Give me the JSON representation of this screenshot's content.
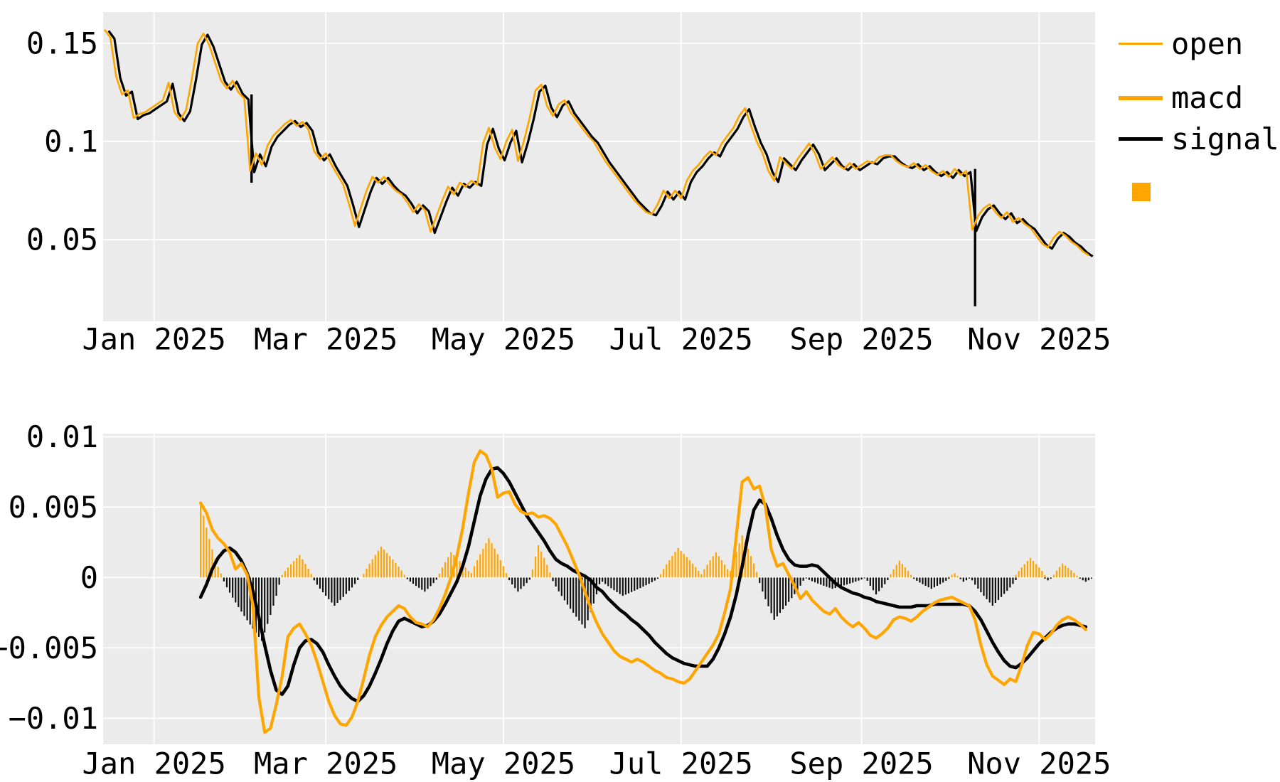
{
  "figure": {
    "background": "#ffffff",
    "panel_background": "#ebebeb",
    "grid_color": "#ffffff",
    "text_color": "#000000",
    "accent_orange": "#FFA500",
    "accent_black": "#000000"
  },
  "legend": {
    "items": [
      {
        "label": "open",
        "swatch": "line-thin",
        "color": "#FFA500"
      },
      {
        "label": "macd",
        "swatch": "line-thick",
        "color": "#FFA500"
      },
      {
        "label": "signal",
        "swatch": "line-thick",
        "color": "#000000"
      },
      {
        "label": "",
        "swatch": "square",
        "color": "#FFA500"
      }
    ]
  },
  "chart_data": {
    "type": "line",
    "title": "",
    "x": {
      "unit": "day index (daily bars, ~mid-Dec 2024 through mid-Nov 2025)",
      "range": [
        0,
        339
      ],
      "ticks": [
        {
          "day": 17,
          "label": "Jan 2025"
        },
        {
          "day": 76,
          "label": "Mar 2025"
        },
        {
          "day": 137,
          "label": "May 2025"
        },
        {
          "day": 198,
          "label": "Jul 2025"
        },
        {
          "day": 260,
          "label": "Sep 2025"
        },
        {
          "day": 321,
          "label": "Nov 2025"
        }
      ]
    },
    "panels": [
      {
        "id": "price",
        "grid": true,
        "ylim": [
          0.008,
          0.166
        ],
        "yticks": [
          {
            "value": 0.15,
            "label": "0.15"
          },
          {
            "value": 0.1,
            "label": "0.1"
          },
          {
            "value": 0.05,
            "label": "0.05"
          }
        ],
        "series": [
          {
            "name": "open",
            "color": "#FFA500",
            "width": 2.6,
            "day_start": 0,
            "day_step": 2,
            "values": [
              0.157,
              0.153,
              0.133,
              0.124,
              0.126,
              0.112,
              0.114,
              0.115,
              0.117,
              0.119,
              0.121,
              0.13,
              0.115,
              0.111,
              0.116,
              0.132,
              0.15,
              0.155,
              0.149,
              0.14,
              0.131,
              0.127,
              0.131,
              0.125,
              0.122,
              0.085,
              0.094,
              0.088,
              0.098,
              0.103,
              0.106,
              0.109,
              0.111,
              0.108,
              0.11,
              0.106,
              0.095,
              0.091,
              0.094,
              0.088,
              0.083,
              0.078,
              0.068,
              0.057,
              0.066,
              0.075,
              0.082,
              0.079,
              0.082,
              0.078,
              0.075,
              0.073,
              0.069,
              0.064,
              0.068,
              0.065,
              0.054,
              0.062,
              0.07,
              0.077,
              0.073,
              0.079,
              0.077,
              0.08,
              0.078,
              0.099,
              0.107,
              0.097,
              0.091,
              0.1,
              0.106,
              0.09,
              0.1,
              0.112,
              0.126,
              0.129,
              0.118,
              0.113,
              0.119,
              0.121,
              0.115,
              0.111,
              0.107,
              0.103,
              0.1,
              0.095,
              0.09,
              0.086,
              0.082,
              0.078,
              0.074,
              0.07,
              0.067,
              0.064,
              0.063,
              0.068,
              0.075,
              0.071,
              0.075,
              0.071,
              0.08,
              0.085,
              0.088,
              0.092,
              0.095,
              0.093,
              0.099,
              0.103,
              0.107,
              0.113,
              0.117,
              0.108,
              0.1,
              0.094,
              0.085,
              0.08,
              0.092,
              0.089,
              0.086,
              0.091,
              0.095,
              0.099,
              0.094,
              0.086,
              0.089,
              0.092,
              0.088,
              0.086,
              0.089,
              0.086,
              0.088,
              0.09,
              0.089,
              0.092,
              0.093,
              0.093,
              0.09,
              0.088,
              0.087,
              0.089,
              0.086,
              0.088,
              0.085,
              0.083,
              0.085,
              0.082,
              0.086,
              0.083,
              0.085,
              0.055,
              0.062,
              0.066,
              0.068,
              0.064,
              0.061,
              0.064,
              0.059,
              0.061,
              0.058,
              0.056,
              0.052,
              0.048,
              0.046,
              0.051,
              0.054,
              0.052,
              0.049,
              0.047,
              0.044,
              0.042
            ]
          }
        ],
        "shadow_series": {
          "name": "open-shadow",
          "color": "#000000",
          "width": 3.2,
          "derived_from": "open",
          "offset_days": 1.4,
          "offset_value": -0.0006
        },
        "crash_spikes": [
          {
            "day": 50.5,
            "from": 0.124,
            "to": 0.079
          },
          {
            "day": 299.0,
            "from": 0.086,
            "to": 0.016
          }
        ]
      },
      {
        "id": "macd",
        "grid": true,
        "ylim": [
          -0.0119,
          0.0102
        ],
        "yticks": [
          {
            "value": 0.01,
            "label": "0.01"
          },
          {
            "value": 0.005,
            "label": "0.005"
          },
          {
            "value": 0.0,
            "label": "0"
          },
          {
            "value": -0.005,
            "label": "−0.005"
          },
          {
            "value": -0.01,
            "label": "−0.01"
          }
        ],
        "series": [
          {
            "name": "macd",
            "color": "#FFA500",
            "width": 4.2,
            "day_start": 33,
            "day_step": 2,
            "values": [
              0.0053,
              0.0046,
              0.0034,
              0.0028,
              0.0024,
              0.0018,
              0.0006,
              0.001,
              0.0002,
              -0.002,
              -0.0085,
              -0.011,
              -0.0107,
              -0.009,
              -0.007,
              -0.0042,
              -0.0036,
              -0.0033,
              -0.004,
              -0.0048,
              -0.006,
              -0.0074,
              -0.0088,
              -0.0098,
              -0.0104,
              -0.0105,
              -0.0099,
              -0.0088,
              -0.0072,
              -0.0055,
              -0.0042,
              -0.0034,
              -0.0028,
              -0.0024,
              -0.002,
              -0.0022,
              -0.0028,
              -0.0032,
              -0.0033,
              -0.0035,
              -0.003,
              -0.0022,
              -0.0012,
              0.0,
              0.0015,
              0.0035,
              0.006,
              0.0082,
              0.009,
              0.0087,
              0.0077,
              0.0057,
              0.006,
              0.0061,
              0.0052,
              0.0047,
              0.0045,
              0.0046,
              0.0043,
              0.0044,
              0.0042,
              0.0038,
              0.003,
              0.0022,
              0.0012,
              0.0002,
              -0.001,
              -0.0022,
              -0.0032,
              -0.004,
              -0.0046,
              -0.0052,
              -0.0056,
              -0.0058,
              -0.006,
              -0.0058,
              -0.006,
              -0.0063,
              -0.0066,
              -0.0068,
              -0.0071,
              -0.0072,
              -0.0074,
              -0.0075,
              -0.0072,
              -0.0066,
              -0.006,
              -0.0054,
              -0.0048,
              -0.004,
              -0.0025,
              -0.0008,
              0.003,
              0.0068,
              0.0071,
              0.0063,
              0.0065,
              0.005,
              0.002,
              0.0008,
              0.001,
              0.0002,
              -0.0006,
              -0.0015,
              -0.001,
              -0.0016,
              -0.002,
              -0.0024,
              -0.0026,
              -0.0022,
              -0.0028,
              -0.0032,
              -0.0035,
              -0.0032,
              -0.0036,
              -0.0041,
              -0.0043,
              -0.004,
              -0.0036,
              -0.003,
              -0.0028,
              -0.0029,
              -0.0031,
              -0.0028,
              -0.0024,
              -0.0021,
              -0.0018,
              -0.0016,
              -0.0015,
              -0.0014,
              -0.0016,
              -0.0018,
              -0.002,
              -0.003,
              -0.0048,
              -0.0062,
              -0.007,
              -0.0073,
              -0.0076,
              -0.0072,
              -0.0074,
              -0.0062,
              -0.0048,
              -0.0039,
              -0.004,
              -0.0044,
              -0.004,
              -0.0034,
              -0.003,
              -0.0028,
              -0.003,
              -0.0033,
              -0.0037
            ]
          },
          {
            "name": "signal",
            "color": "#000000",
            "width": 4.6,
            "day_start": 33,
            "day_step": 2,
            "values": [
              -0.0014,
              -0.0005,
              0.0006,
              0.0014,
              0.0019,
              0.0021,
              0.0018,
              0.0012,
              0.0003,
              -0.001,
              -0.0028,
              -0.0048,
              -0.0066,
              -0.008,
              -0.0083,
              -0.0077,
              -0.0062,
              -0.005,
              -0.0045,
              -0.0044,
              -0.0047,
              -0.0053,
              -0.0062,
              -0.007,
              -0.0077,
              -0.0082,
              -0.0086,
              -0.0088,
              -0.0084,
              -0.0077,
              -0.0068,
              -0.0058,
              -0.0047,
              -0.0038,
              -0.0031,
              -0.0029,
              -0.0031,
              -0.0033,
              -0.0035,
              -0.0034,
              -0.0031,
              -0.0026,
              -0.0019,
              -0.0011,
              -0.0003,
              0.0008,
              0.0022,
              0.004,
              0.0058,
              0.007,
              0.0077,
              0.0078,
              0.0074,
              0.0068,
              0.006,
              0.0052,
              0.0044,
              0.0038,
              0.0032,
              0.0026,
              0.0019,
              0.0013,
              0.001,
              0.0008,
              0.0005,
              0.0003,
              0.0001,
              -0.0002,
              -0.0007,
              -0.001,
              -0.0015,
              -0.0019,
              -0.0023,
              -0.0026,
              -0.003,
              -0.0033,
              -0.0037,
              -0.0041,
              -0.0046,
              -0.005,
              -0.0054,
              -0.0057,
              -0.0059,
              -0.0061,
              -0.0062,
              -0.0063,
              -0.0063,
              -0.0063,
              -0.0058,
              -0.005,
              -0.004,
              -0.0028,
              -0.0012,
              0.0008,
              0.003,
              0.0048,
              0.0055,
              0.0052,
              0.0042,
              0.003,
              0.002,
              0.0013,
              0.0009,
              0.0008,
              0.0008,
              0.0009,
              0.0008,
              0.0004,
              0.0,
              -0.0004,
              -0.0007,
              -0.0009,
              -0.0011,
              -0.0012,
              -0.0014,
              -0.0015,
              -0.0017,
              -0.0018,
              -0.0019,
              -0.002,
              -0.0021,
              -0.0021,
              -0.0021,
              -0.002,
              -0.002,
              -0.002,
              -0.0019,
              -0.0019,
              -0.0019,
              -0.0019,
              -0.0019,
              -0.0019,
              -0.002,
              -0.0024,
              -0.003,
              -0.0038,
              -0.0046,
              -0.0053,
              -0.0059,
              -0.0063,
              -0.0064,
              -0.0061,
              -0.0057,
              -0.0052,
              -0.0047,
              -0.0043,
              -0.0039,
              -0.0036,
              -0.0034,
              -0.0033,
              -0.0033,
              -0.0034,
              -0.0035
            ]
          }
        ],
        "histogram": {
          "bar_color_positive": "#FFA500",
          "bar_color_negative": "#111111",
          "clusters": [
            {
              "day_start": 33,
              "day_end": 40,
              "peak": 0.0053,
              "peak_day": 33,
              "shape": "decay"
            },
            {
              "day_start": 41,
              "day_end": 60,
              "peak": -0.0045,
              "peak_day": 54,
              "shape": "hump"
            },
            {
              "day_start": 61,
              "day_end": 71,
              "peak": 0.0016,
              "peak_day": 67,
              "shape": "hump"
            },
            {
              "day_start": 72,
              "day_end": 87,
              "peak": -0.002,
              "peak_day": 79,
              "shape": "hump"
            },
            {
              "day_start": 89,
              "day_end": 103,
              "peak": 0.0022,
              "peak_day": 95,
              "shape": "hump"
            },
            {
              "day_start": 104,
              "day_end": 114,
              "peak": -0.001,
              "peak_day": 110,
              "shape": "hump"
            },
            {
              "day_start": 115,
              "day_end": 126,
              "peak": 0.0018,
              "peak_day": 119,
              "shape": "hump"
            },
            {
              "day_start": 126,
              "day_end": 138,
              "peak": 0.0028,
              "peak_day": 132,
              "shape": "hump"
            },
            {
              "day_start": 139,
              "day_end": 146,
              "peak": -0.001,
              "peak_day": 142,
              "shape": "hump"
            },
            {
              "day_start": 147,
              "day_end": 153,
              "peak": 0.0023,
              "peak_day": 149,
              "shape": "hump"
            },
            {
              "day_start": 154,
              "day_end": 170,
              "peak": -0.0036,
              "peak_day": 165,
              "shape": "hump"
            },
            {
              "day_start": 170,
              "day_end": 190,
              "peak": -0.0013,
              "peak_day": 178,
              "shape": "hump"
            },
            {
              "day_start": 191,
              "day_end": 205,
              "peak": 0.0021,
              "peak_day": 197,
              "shape": "hump"
            },
            {
              "day_start": 205,
              "day_end": 215,
              "peak": 0.0018,
              "peak_day": 210,
              "shape": "hump"
            },
            {
              "day_start": 215,
              "day_end": 224,
              "peak": 0.003,
              "peak_day": 219,
              "shape": "hump"
            },
            {
              "day_start": 225,
              "day_end": 240,
              "peak": -0.003,
              "peak_day": 230,
              "shape": "hump"
            },
            {
              "day_start": 241,
              "day_end": 261,
              "peak": -0.0008,
              "peak_day": 250,
              "shape": "hump"
            },
            {
              "day_start": 262,
              "day_end": 269,
              "peak": -0.0012,
              "peak_day": 265,
              "shape": "hump"
            },
            {
              "day_start": 270,
              "day_end": 277,
              "peak": 0.0012,
              "peak_day": 273,
              "shape": "hump"
            },
            {
              "day_start": 278,
              "day_end": 290,
              "peak": -0.0008,
              "peak_day": 284,
              "shape": "hump"
            },
            {
              "day_start": 290,
              "day_end": 293,
              "peak": 0.0003,
              "peak_day": 292,
              "shape": "hump"
            },
            {
              "day_start": 294,
              "day_end": 297,
              "peak": -0.0003,
              "peak_day": 295,
              "shape": "hump"
            },
            {
              "day_start": 298,
              "day_end": 313,
              "peak": -0.002,
              "peak_day": 305,
              "shape": "hump"
            },
            {
              "day_start": 313,
              "day_end": 323,
              "peak": 0.0014,
              "peak_day": 318,
              "shape": "hump"
            },
            {
              "day_start": 323,
              "day_end": 325,
              "peak": -0.0002,
              "peak_day": 324,
              "shape": "hump"
            },
            {
              "day_start": 326,
              "day_end": 334,
              "peak": 0.001,
              "peak_day": 329,
              "shape": "hump"
            },
            {
              "day_start": 335,
              "day_end": 339,
              "peak": -0.0003,
              "peak_day": 337,
              "shape": "hump"
            }
          ]
        }
      }
    ]
  }
}
